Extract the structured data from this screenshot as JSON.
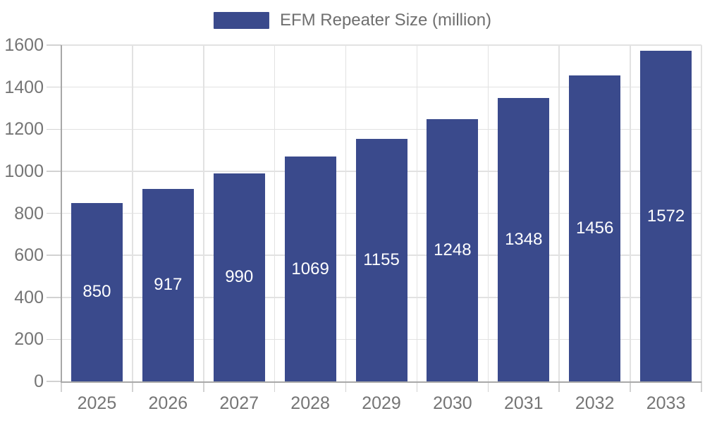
{
  "legend": {
    "label": "EFM Repeater Size (million)"
  },
  "chart_data": {
    "type": "bar",
    "title": "EFM Repeater Size (million)",
    "categories": [
      "2025",
      "2026",
      "2027",
      "2028",
      "2029",
      "2030",
      "2031",
      "2032",
      "2033"
    ],
    "values": [
      850,
      917,
      990,
      1069,
      1155,
      1248,
      1348,
      1456,
      1572
    ],
    "xlabel": "",
    "ylabel": "",
    "ylim": [
      0,
      1600
    ],
    "yticks": [
      0,
      200,
      400,
      600,
      800,
      1000,
      1200,
      1400,
      1600
    ],
    "grid": true,
    "legend_position": "top-center",
    "colors": {
      "bar": "#3A4A8C",
      "bar_value_label": "#FFFFFF",
      "axis_label": "#757575",
      "grid_line": "#E2E2E2",
      "axis_line": "#A8A8A8",
      "tick_line": "#D2D2D2"
    }
  }
}
